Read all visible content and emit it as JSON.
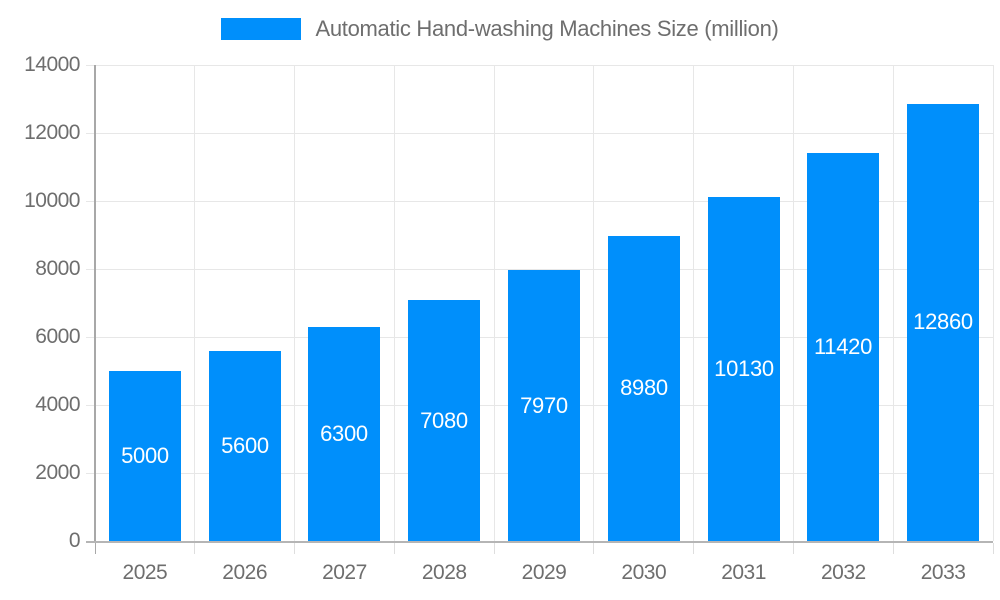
{
  "chart_data": {
    "type": "bar",
    "title": "Automatic Hand-washing Machines Size (million)",
    "legend_label": "Automatic Hand-washing Machines Size (million)",
    "categories": [
      "2025",
      "2026",
      "2027",
      "2028",
      "2029",
      "2030",
      "2031",
      "2032",
      "2033"
    ],
    "values": [
      5000,
      5600,
      6300,
      7080,
      7970,
      8980,
      10130,
      11420,
      12860
    ],
    "value_labels": [
      "5000",
      "5600",
      "6300",
      "7080",
      "7970",
      "8980",
      "10130",
      "11420",
      "12860"
    ],
    "yticks": [
      0,
      2000,
      4000,
      6000,
      8000,
      10000,
      12000,
      14000
    ],
    "ylim": [
      0,
      14000
    ],
    "xlabel": "",
    "ylabel": "",
    "legend_position": "top",
    "grid": true,
    "value_label_position": "inside-center",
    "colors": {
      "bar": "#008FFB",
      "grid": "#e7e7e7",
      "axis_y": "#a8a8a8",
      "axis_x": "#b5b5b5",
      "tick_minor": "#dedede",
      "tick_text": "#6e6e6e",
      "value_text": "#ffffff",
      "background": "#ffffff"
    }
  }
}
